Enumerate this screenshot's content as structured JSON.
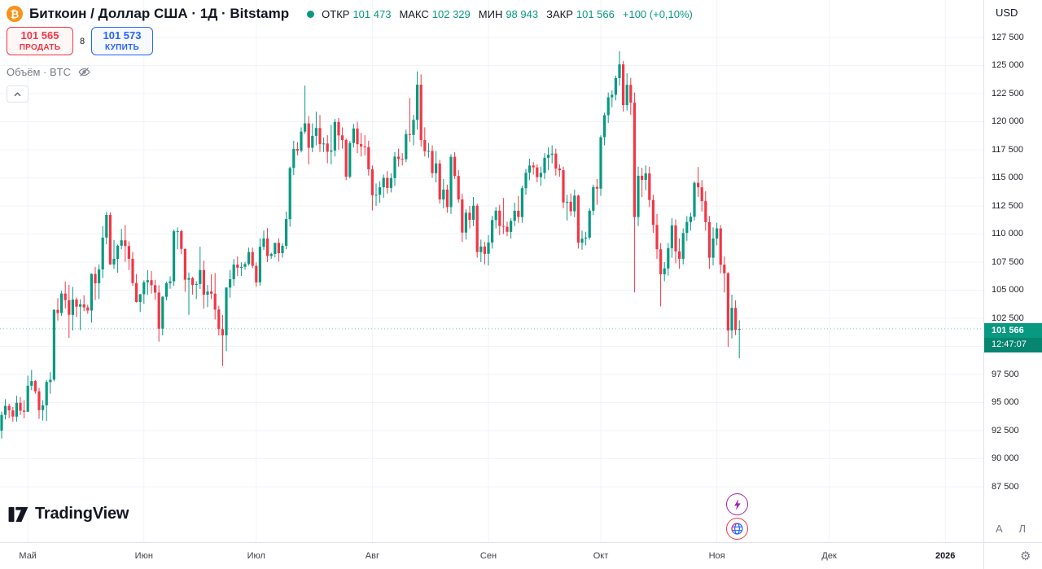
{
  "header": {
    "symbol_title": "Биткоин / Доллар США · 1Д · Bitstamp",
    "currency": "USD",
    "ohlc": {
      "o_label": "ОТКР",
      "o": "101 473",
      "h_label": "МАКС",
      "h": "102 329",
      "l_label": "МИН",
      "l": "98 943",
      "c_label": "ЗАКР",
      "c": "101 566",
      "change": "+100 (+0,10%)"
    }
  },
  "trade_panel": {
    "sell_price": "101 565",
    "sell_label": "ПРОДАТЬ",
    "spread": "8",
    "buy_price": "101 573",
    "buy_label": "КУПИТЬ"
  },
  "volume_row": {
    "label": "Объём · BTC"
  },
  "price_tag": {
    "price": "101 566",
    "countdown": "12:47:07"
  },
  "logo": {
    "text": "TradingView"
  },
  "axis_buttons": {
    "auto": "А",
    "log": "Л"
  },
  "colors": {
    "up": "#089981",
    "down": "#F23645",
    "sell": "#F23645",
    "buy": "#2962FF",
    "accent_purple": "#9C27B0",
    "btc_orange": "#F7931A"
  },
  "chart_data": {
    "type": "candlestick",
    "interval": "1Д",
    "exchange": "Bitstamp",
    "pair": "Биткоин / Доллар США",
    "last_price": 101566,
    "last_candle_ohlc": {
      "open": 101473,
      "high": 102329,
      "low": 98943,
      "close": 101566
    },
    "y_axis": {
      "ticks": [
        127500,
        125000,
        122500,
        120000,
        117500,
        115000,
        112500,
        110000,
        107500,
        105000,
        102500,
        100000,
        97500,
        95000,
        92500,
        90000,
        87500
      ]
    },
    "x_axis": {
      "labels": [
        {
          "label": "Май",
          "index": 7
        },
        {
          "label": "Июн",
          "index": 38
        },
        {
          "label": "Июл",
          "index": 68
        },
        {
          "label": "Авг",
          "index": 99
        },
        {
          "label": "Сен",
          "index": 130
        },
        {
          "label": "Окт",
          "index": 160
        },
        {
          "label": "Ноя",
          "index": 191
        },
        {
          "label": "Дек",
          "index": 221
        },
        {
          "label": "2026",
          "index": 252,
          "year": true
        }
      ]
    },
    "candles": [
      [
        92500,
        94200,
        91800,
        93900
      ],
      [
        93900,
        95300,
        93500,
        94700
      ],
      [
        94700,
        94900,
        93600,
        94300
      ],
      [
        94300,
        94600,
        93300,
        93750
      ],
      [
        93750,
        95600,
        93300,
        94980
      ],
      [
        94980,
        95500,
        93900,
        94280
      ],
      [
        94280,
        95200,
        93600,
        94180
      ],
      [
        94180,
        97400,
        94150,
        96490
      ],
      [
        96490,
        97900,
        96100,
        96910
      ],
      [
        96910,
        97000,
        95800,
        95990
      ],
      [
        95990,
        96300,
        93550,
        94320
      ],
      [
        94320,
        95200,
        93400,
        94750
      ],
      [
        94750,
        97000,
        93350,
        96830
      ],
      [
        96830,
        97700,
        95790,
        97030
      ],
      [
        97030,
        103300,
        96900,
        103250
      ],
      [
        103250,
        104300,
        102300,
        102970
      ],
      [
        102970,
        104950,
        102700,
        104700
      ],
      [
        104700,
        105780,
        103370,
        104110
      ],
      [
        104110,
        105470,
        100750,
        102810
      ],
      [
        102810,
        105290,
        101420,
        104170
      ],
      [
        104170,
        104350,
        102600,
        103540
      ],
      [
        103540,
        104190,
        101440,
        103740
      ],
      [
        103740,
        104550,
        103130,
        103470
      ],
      [
        103470,
        103700,
        102900,
        103190
      ],
      [
        103190,
        106500,
        102110,
        106450
      ],
      [
        106450,
        107070,
        104130,
        105620
      ],
      [
        105620,
        107300,
        104220,
        106850
      ],
      [
        106850,
        110720,
        106080,
        109680
      ],
      [
        109680,
        111980,
        109080,
        111700
      ],
      [
        111700,
        111920,
        107260,
        107290
      ],
      [
        107290,
        109470,
        106890,
        107790
      ],
      [
        107790,
        109060,
        106560,
        108960
      ],
      [
        108960,
        110450,
        108640,
        109440
      ],
      [
        109440,
        110790,
        107520,
        108930
      ],
      [
        108930,
        109340,
        106790,
        107800
      ],
      [
        107800,
        108400,
        105400,
        105640
      ],
      [
        105640,
        106440,
        103900,
        103950
      ],
      [
        103950,
        104690,
        103060,
        104640
      ],
      [
        104640,
        105880,
        103790,
        105710
      ],
      [
        105710,
        106780,
        104580,
        105890
      ],
      [
        105890,
        106720,
        104700,
        105440
      ],
      [
        105440,
        105920,
        104150,
        104790
      ],
      [
        104790,
        105440,
        100420,
        101580
      ],
      [
        101580,
        104470,
        100970,
        104410
      ],
      [
        104410,
        105770,
        104090,
        105620
      ],
      [
        105620,
        106230,
        105130,
        105790
      ],
      [
        105790,
        110390,
        105390,
        110250
      ],
      [
        110250,
        110590,
        108650,
        110260
      ],
      [
        110260,
        110380,
        108210,
        108680
      ],
      [
        108680,
        108690,
        104870,
        105930
      ],
      [
        105930,
        106570,
        102810,
        106090
      ],
      [
        106090,
        106190,
        104600,
        105470
      ],
      [
        105470,
        105790,
        104220,
        105550
      ],
      [
        105550,
        108870,
        105110,
        106790
      ],
      [
        106790,
        107620,
        103370,
        104600
      ],
      [
        104600,
        105470,
        103500,
        104880
      ],
      [
        104880,
        106420,
        104210,
        104690
      ],
      [
        104690,
        106530,
        102390,
        103280
      ],
      [
        103280,
        103600,
        100970,
        101530
      ],
      [
        101530,
        102800,
        98240,
        100980
      ],
      [
        100980,
        105250,
        99590,
        105240
      ],
      [
        105240,
        106790,
        104350,
        105980
      ],
      [
        105980,
        107770,
        105390,
        107280
      ],
      [
        107280,
        108000,
        106260,
        107000
      ],
      [
        107000,
        107490,
        106260,
        107080
      ],
      [
        107080,
        107520,
        106830,
        107330
      ],
      [
        107330,
        108790,
        107180,
        108390
      ],
      [
        108390,
        108800,
        106970,
        107170
      ],
      [
        107170,
        107480,
        105300,
        105700
      ],
      [
        105700,
        109600,
        105400,
        108860
      ],
      [
        108860,
        110300,
        108590,
        109600
      ],
      [
        109600,
        110530,
        107500,
        108040
      ],
      [
        108040,
        108350,
        107800,
        108230
      ],
      [
        108230,
        109210,
        107930,
        109220
      ],
      [
        109220,
        109620,
        107560,
        108300
      ],
      [
        108300,
        109180,
        107890,
        108950
      ],
      [
        108950,
        112000,
        108650,
        111330
      ],
      [
        111330,
        116000,
        110660,
        115880
      ],
      [
        115880,
        118300,
        115240,
        117570
      ],
      [
        117570,
        118180,
        117010,
        117420
      ],
      [
        117420,
        119500,
        117270,
        119120
      ],
      [
        119120,
        123220,
        118920,
        119850
      ],
      [
        119850,
        120500,
        116200,
        117680
      ],
      [
        117680,
        119850,
        117300,
        118740
      ],
      [
        118740,
        120900,
        117900,
        119440
      ],
      [
        119440,
        120600,
        117300,
        118000
      ],
      [
        118000,
        118600,
        117300,
        118060
      ],
      [
        118060,
        118800,
        116300,
        117330
      ],
      [
        117330,
        119700,
        116200,
        117440
      ],
      [
        117440,
        120250,
        116900,
        119980
      ],
      [
        119980,
        120330,
        117500,
        118780
      ],
      [
        118780,
        119500,
        117600,
        118370
      ],
      [
        118370,
        118500,
        114800,
        115100
      ],
      [
        115100,
        118300,
        114950,
        118100
      ],
      [
        118100,
        119800,
        117700,
        119400
      ],
      [
        119400,
        120000,
        117200,
        118000
      ],
      [
        118000,
        119000,
        116900,
        117800
      ],
      [
        117800,
        118800,
        117000,
        117730
      ],
      [
        117730,
        118300,
        115200,
        115760
      ],
      [
        115760,
        116100,
        112100,
        113450
      ],
      [
        113450,
        114500,
        112500,
        113500
      ],
      [
        113500,
        114700,
        112800,
        114170
      ],
      [
        114170,
        115300,
        113200,
        115000
      ],
      [
        115000,
        115600,
        113600,
        114100
      ],
      [
        114100,
        115400,
        113700,
        114980
      ],
      [
        114980,
        117300,
        114300,
        116890
      ],
      [
        116890,
        117600,
        116000,
        116680
      ],
      [
        116680,
        117200,
        116100,
        116660
      ],
      [
        116660,
        119300,
        116400,
        118900
      ],
      [
        118900,
        122100,
        118200,
        118820
      ],
      [
        118820,
        120600,
        117900,
        120160
      ],
      [
        120160,
        124480,
        119300,
        123300
      ],
      [
        123300,
        124200,
        117800,
        118370
      ],
      [
        118370,
        119500,
        116900,
        117370
      ],
      [
        117370,
        118100,
        116800,
        117400
      ],
      [
        117400,
        117900,
        115000,
        115420
      ],
      [
        115420,
        117400,
        114600,
        116280
      ],
      [
        116280,
        116600,
        112700,
        113080
      ],
      [
        113080,
        114900,
        112300,
        113960
      ],
      [
        113960,
        114400,
        111900,
        112400
      ],
      [
        112400,
        117100,
        111800,
        116880
      ],
      [
        116880,
        117300,
        114900,
        115170
      ],
      [
        115170,
        115700,
        112800,
        113080
      ],
      [
        113080,
        113600,
        109300,
        110130
      ],
      [
        110130,
        112200,
        109500,
        111900
      ],
      [
        111900,
        112500,
        110500,
        111270
      ],
      [
        111270,
        113300,
        110700,
        112520
      ],
      [
        112520,
        112700,
        107900,
        108390
      ],
      [
        108390,
        109500,
        107500,
        108890
      ],
      [
        108890,
        109300,
        107300,
        108240
      ],
      [
        108240,
        109900,
        107200,
        109250
      ],
      [
        109250,
        111600,
        108700,
        111240
      ],
      [
        111240,
        112400,
        110500,
        112080
      ],
      [
        112080,
        112600,
        109900,
        110720
      ],
      [
        110720,
        113200,
        110000,
        110650
      ],
      [
        110650,
        111100,
        109800,
        110190
      ],
      [
        110190,
        111400,
        109600,
        111170
      ],
      [
        111170,
        112800,
        110700,
        112070
      ],
      [
        112070,
        113400,
        111000,
        111510
      ],
      [
        111510,
        114300,
        111000,
        114080
      ],
      [
        114080,
        115800,
        113500,
        115460
      ],
      [
        115460,
        116700,
        114800,
        116100
      ],
      [
        116100,
        116400,
        115300,
        115930
      ],
      [
        115930,
        116200,
        114600,
        115070
      ],
      [
        115070,
        116000,
        114300,
        115440
      ],
      [
        115440,
        117200,
        114900,
        116790
      ],
      [
        116790,
        117700,
        115700,
        117060
      ],
      [
        117060,
        117900,
        116300,
        117160
      ],
      [
        117160,
        117600,
        115200,
        115830
      ],
      [
        115830,
        116200,
        115100,
        115680
      ],
      [
        115680,
        116000,
        112300,
        112810
      ],
      [
        112810,
        113500,
        111200,
        112870
      ],
      [
        112870,
        113600,
        111600,
        112030
      ],
      [
        112030,
        113950,
        111500,
        113420
      ],
      [
        113420,
        113500,
        108700,
        109230
      ],
      [
        109230,
        110300,
        108600,
        109590
      ],
      [
        109590,
        110200,
        109000,
        109680
      ],
      [
        109680,
        112300,
        109500,
        112080
      ],
      [
        112080,
        114400,
        111700,
        114190
      ],
      [
        114190,
        114900,
        112600,
        114040
      ],
      [
        114040,
        118800,
        113400,
        118620
      ],
      [
        118620,
        120800,
        117900,
        120580
      ],
      [
        120580,
        122600,
        119900,
        122170
      ],
      [
        122170,
        122800,
        121300,
        122400
      ],
      [
        122400,
        124100,
        121900,
        123880
      ],
      [
        123880,
        126270,
        123200,
        125100
      ],
      [
        125100,
        125400,
        120900,
        121480
      ],
      [
        121480,
        124300,
        121000,
        123280
      ],
      [
        123280,
        123900,
        120600,
        121690
      ],
      [
        121690,
        122600,
        104800,
        111510
      ],
      [
        111510,
        116000,
        110700,
        115190
      ],
      [
        115190,
        115900,
        113300,
        114820
      ],
      [
        114820,
        116100,
        113900,
        115400
      ],
      [
        115400,
        116000,
        112400,
        113030
      ],
      [
        113030,
        113500,
        110100,
        110810
      ],
      [
        110810,
        111800,
        107800,
        108640
      ],
      [
        108640,
        109200,
        103550,
        106420
      ],
      [
        106420,
        107500,
        105800,
        106940
      ],
      [
        106940,
        109200,
        106300,
        108740
      ],
      [
        108740,
        111400,
        107900,
        110770
      ],
      [
        110770,
        111300,
        107400,
        108460
      ],
      [
        108460,
        109600,
        106900,
        107800
      ],
      [
        107800,
        110500,
        107300,
        110090
      ],
      [
        110090,
        111600,
        109400,
        111070
      ],
      [
        111070,
        111900,
        110300,
        111540
      ],
      [
        111540,
        114700,
        111200,
        114560
      ],
      [
        114560,
        115970,
        113300,
        114160
      ],
      [
        114160,
        114800,
        112000,
        112930
      ],
      [
        112930,
        113800,
        110300,
        111060
      ],
      [
        111060,
        111600,
        106900,
        107890
      ],
      [
        107890,
        110600,
        107200,
        109600
      ],
      [
        109600,
        111000,
        109000,
        110500
      ],
      [
        110500,
        110800,
        106500,
        107270
      ],
      [
        107270,
        108000,
        104800,
        106510
      ],
      [
        106510,
        106600,
        99950,
        101420
      ],
      [
        101420,
        104600,
        100700,
        103430
      ],
      [
        103430,
        104100,
        101000,
        101466
      ],
      [
        101473,
        102329,
        98943,
        101566
      ]
    ]
  }
}
